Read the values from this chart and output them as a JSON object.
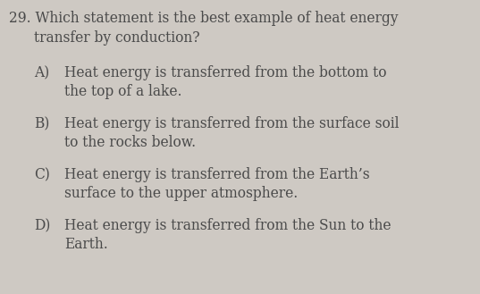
{
  "background_color": "#cec9c3",
  "text_color": "#4a4a4a",
  "question_number": "29.",
  "question_line1": "Which statement is the best example of heat energy",
  "question_line2": "transfer by conduction?",
  "options": [
    {
      "label": "A)",
      "line1": "Heat energy is transferred from the bottom to",
      "line2": "the top of a lake."
    },
    {
      "label": "B)",
      "line1": "Heat energy is transferred from the surface soil",
      "line2": "to the rocks below."
    },
    {
      "label": "C)",
      "line1": "Heat energy is transferred from the Earth’s",
      "line2": "surface to the upper atmosphere."
    },
    {
      "label": "D)",
      "line1": "Heat energy is transferred from the Sun to the",
      "line2": "Earth."
    }
  ],
  "font_size": 11.2,
  "fig_width": 5.37,
  "fig_height": 3.29,
  "dpi": 100
}
